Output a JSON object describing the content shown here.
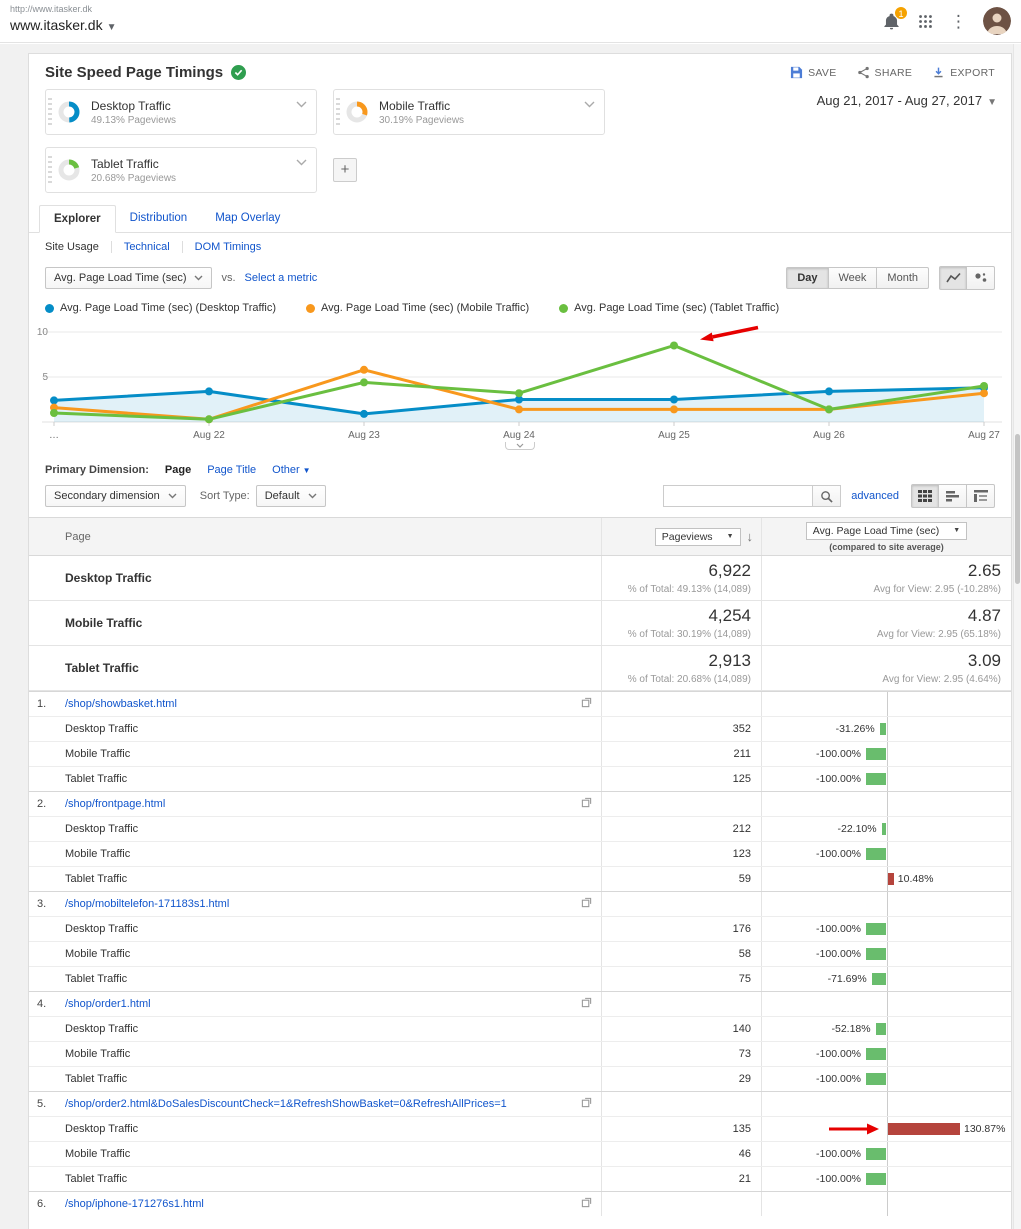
{
  "header": {
    "url_small": "http://www.itasker.dk",
    "account_name": "www.itasker.dk",
    "notification_count": "1"
  },
  "toolbar": {
    "title": "Site Speed Page Timings",
    "save_label": "SAVE",
    "share_label": "SHARE",
    "export_label": "EXPORT"
  },
  "date_range": "Aug 21, 2017 - Aug 27, 2017",
  "segments": [
    {
      "name": "Desktop Traffic",
      "sub": "49.13% Pageviews",
      "pct": 49.13,
      "color": "#058dc7"
    },
    {
      "name": "Mobile Traffic",
      "sub": "30.19% Pageviews",
      "pct": 30.19,
      "color": "#f8981d"
    },
    {
      "name": "Tablet Traffic",
      "sub": "20.68% Pageviews",
      "pct": 20.68,
      "color": "#6abf40"
    }
  ],
  "add_segment_label": "+",
  "tabs": [
    {
      "label": "Explorer",
      "active": true
    },
    {
      "label": "Distribution",
      "active": false
    },
    {
      "label": "Map Overlay",
      "active": false
    }
  ],
  "subtabs": [
    {
      "label": "Site Usage",
      "active": true
    },
    {
      "label": "Technical",
      "active": false
    },
    {
      "label": "DOM Timings",
      "active": false
    }
  ],
  "metric_bar": {
    "metric_select": "Avg. Page Load Time (sec)",
    "vs_label": "vs.",
    "select_metric_link": "Select a metric",
    "granularity": [
      {
        "label": "Day",
        "active": true
      },
      {
        "label": "Week",
        "active": false
      },
      {
        "label": "Month",
        "active": false
      }
    ]
  },
  "chart_data": {
    "type": "line",
    "x": [
      "…",
      "Aug 22",
      "Aug 23",
      "Aug 24",
      "Aug 25",
      "Aug 26",
      "Aug 27"
    ],
    "ylim": [
      0,
      10
    ],
    "yticks": [
      5,
      10
    ],
    "series": [
      {
        "name": "Avg. Page Load Time (sec) (Desktop Traffic)",
        "color": "#058dc7",
        "area": true,
        "values": [
          2.4,
          3.4,
          0.9,
          2.5,
          2.5,
          3.4,
          3.8
        ]
      },
      {
        "name": "Avg. Page Load Time (sec) (Mobile Traffic)",
        "color": "#f8981d",
        "area": false,
        "values": [
          1.6,
          0.3,
          5.8,
          1.4,
          1.4,
          1.4,
          3.2
        ]
      },
      {
        "name": "Avg. Page Load Time (sec) (Tablet Traffic)",
        "color": "#6abf40",
        "area": false,
        "values": [
          1.0,
          0.3,
          4.4,
          3.2,
          8.5,
          1.4,
          4.0
        ]
      }
    ],
    "annotation": {
      "type": "red-arrow",
      "series": 2,
      "point_index": 4
    }
  },
  "primary_dimension": {
    "label": "Primary Dimension:",
    "options": [
      {
        "label": "Page",
        "active": true
      },
      {
        "label": "Page Title",
        "active": false
      },
      {
        "label": "Other",
        "active": false,
        "caret": true
      }
    ]
  },
  "table_controls": {
    "secondary_dimension": "Secondary dimension",
    "sort_type_label": "Sort Type:",
    "sort_type_value": "Default",
    "search_value": "",
    "advanced_link": "advanced"
  },
  "table": {
    "columns": {
      "page": "Page",
      "pageviews": "Pageviews",
      "metric": "Avg. Page Load Time (sec)",
      "metric_sub": "(compared to site average)"
    },
    "summary_rows": [
      {
        "segment": "Desktop Traffic",
        "pageviews": "6,922",
        "pageviews_sub": "% of Total: 49.13% (14,089)",
        "metric": "2.65",
        "metric_sub": "Avg for View: 2.95 (-10.28%)"
      },
      {
        "segment": "Mobile Traffic",
        "pageviews": "4,254",
        "pageviews_sub": "% of Total: 30.19% (14,089)",
        "metric": "4.87",
        "metric_sub": "Avg for View: 2.95 (65.18%)"
      },
      {
        "segment": "Tablet Traffic",
        "pageviews": "2,913",
        "pageviews_sub": "% of Total: 20.68% (14,089)",
        "metric": "3.09",
        "metric_sub": "Avg for View: 2.95 (4.64%)"
      }
    ],
    "pages": [
      {
        "num": "1.",
        "url": "/shop/showbasket.html",
        "rows": [
          {
            "segment": "Desktop Traffic",
            "pageviews": "352",
            "delta": "-31.26%",
            "delta_value": -31.26
          },
          {
            "segment": "Mobile Traffic",
            "pageviews": "211",
            "delta": "-100.00%",
            "delta_value": -100
          },
          {
            "segment": "Tablet Traffic",
            "pageviews": "125",
            "delta": "-100.00%",
            "delta_value": -100
          }
        ]
      },
      {
        "num": "2.",
        "url": "/shop/frontpage.html",
        "rows": [
          {
            "segment": "Desktop Traffic",
            "pageviews": "212",
            "delta": "-22.10%",
            "delta_value": -22.1
          },
          {
            "segment": "Mobile Traffic",
            "pageviews": "123",
            "delta": "-100.00%",
            "delta_value": -100
          },
          {
            "segment": "Tablet Traffic",
            "pageviews": "59",
            "delta": "10.48%",
            "delta_value": 10.48
          }
        ]
      },
      {
        "num": "3.",
        "url": "/shop/mobiltelefon-171183s1.html",
        "rows": [
          {
            "segment": "Desktop Traffic",
            "pageviews": "176",
            "delta": "-100.00%",
            "delta_value": -100
          },
          {
            "segment": "Mobile Traffic",
            "pageviews": "58",
            "delta": "-100.00%",
            "delta_value": -100
          },
          {
            "segment": "Tablet Traffic",
            "pageviews": "75",
            "delta": "-71.69%",
            "delta_value": -71.69
          }
        ]
      },
      {
        "num": "4.",
        "url": "/shop/order1.html",
        "rows": [
          {
            "segment": "Desktop Traffic",
            "pageviews": "140",
            "delta": "-52.18%",
            "delta_value": -52.18
          },
          {
            "segment": "Mobile Traffic",
            "pageviews": "73",
            "delta": "-100.00%",
            "delta_value": -100
          },
          {
            "segment": "Tablet Traffic",
            "pageviews": "29",
            "delta": "-100.00%",
            "delta_value": -100
          }
        ]
      },
      {
        "num": "5.",
        "url": "/shop/order2.html&DoSalesDiscountCheck=1&RefreshShowBasket=0&RefreshAllPrices=1",
        "rows": [
          {
            "segment": "Desktop Traffic",
            "pageviews": "135",
            "delta": "130.87%",
            "delta_value": 130.87,
            "arrow": true
          },
          {
            "segment": "Mobile Traffic",
            "pageviews": "46",
            "delta": "-100.00%",
            "delta_value": -100
          },
          {
            "segment": "Tablet Traffic",
            "pageviews": "21",
            "delta": "-100.00%",
            "delta_value": -100
          }
        ]
      },
      {
        "num": "6.",
        "url": "/shop/iphone-171276s1.html",
        "rows": []
      }
    ]
  }
}
